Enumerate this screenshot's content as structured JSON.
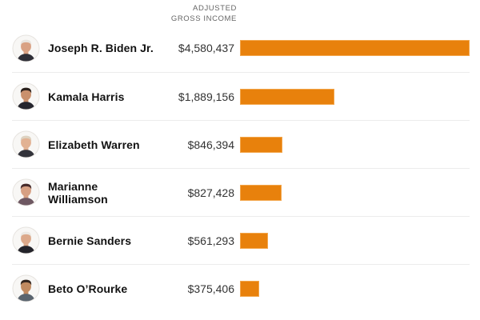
{
  "header": {
    "line1": "ADJUSTED",
    "line2": "GROSS INCOME"
  },
  "chart_data": {
    "type": "bar",
    "orientation": "horizontal",
    "title": "Adjusted Gross Income",
    "categories": [
      "Joseph R. Biden Jr.",
      "Kamala Harris",
      "Elizabeth Warren",
      "Marianne Williamson",
      "Bernie Sanders",
      "Beto O’Rourke"
    ],
    "values": [
      4580437,
      1889156,
      846394,
      827428,
      561293,
      375406
    ],
    "value_labels": [
      "$4,580,437",
      "$1,889,156",
      "$846,394",
      "$827,428",
      "$561,293",
      "$375,406"
    ],
    "xlim": [
      0,
      4580437
    ],
    "bar_color": "#e8810c",
    "bar_border_color": "#f3a64b",
    "grid": false,
    "legend": false
  },
  "avatars": [
    {
      "person": "Joseph R. Biden Jr.",
      "skin": "#d9a183",
      "hair": "#e9e5e0",
      "suit": "#2e2e36"
    },
    {
      "person": "Kamala Harris",
      "skin": "#c9906d",
      "hair": "#2a201c",
      "suit": "#26262e"
    },
    {
      "person": "Elizabeth Warren",
      "skin": "#e2b293",
      "hair": "#ddd2c1",
      "suit": "#33333b"
    },
    {
      "person": "Marianne Williamson",
      "skin": "#d7a083",
      "hair": "#472b2b",
      "suit": "#6e5862"
    },
    {
      "person": "Bernie Sanders",
      "skin": "#dca98b",
      "hair": "#eceae5",
      "suit": "#23232a"
    },
    {
      "person": "Beto O’Rourke",
      "skin": "#c18a60",
      "hair": "#34261f",
      "suit": "#5a646e"
    }
  ]
}
